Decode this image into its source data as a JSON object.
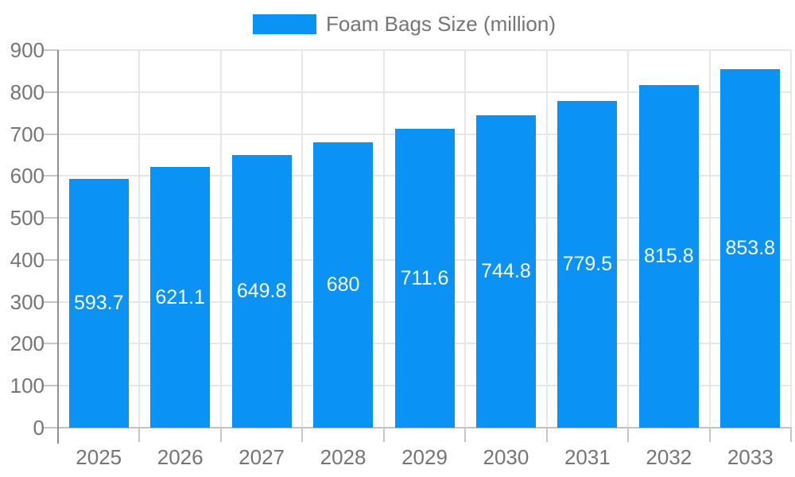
{
  "legend": {
    "items": [
      {
        "label": "Foam Bags Size (million)",
        "color": "#0a92f5"
      }
    ]
  },
  "chart_data": {
    "type": "bar",
    "title": "Foam Bags Size (million)",
    "categories": [
      "2025",
      "2026",
      "2027",
      "2028",
      "2029",
      "2030",
      "2031",
      "2032",
      "2033"
    ],
    "series": [
      {
        "name": "Foam Bags Size (million)",
        "values": [
          593.7,
          621.1,
          649.8,
          680,
          711.6,
          744.8,
          779.5,
          815.8,
          853.8
        ]
      }
    ],
    "value_labels": [
      "593.7",
      "621.1",
      "649.8",
      "680",
      "711.6",
      "744.8",
      "779.5",
      "815.8",
      "853.8"
    ],
    "xlabel": "",
    "ylabel": "",
    "ylim": [
      0,
      900
    ],
    "ytick_step": 100,
    "ytick_labels": [
      "0",
      "100",
      "200",
      "300",
      "400",
      "500",
      "600",
      "700",
      "800",
      "900"
    ],
    "grid": true,
    "legend_position": "top-center"
  },
  "colors": {
    "bar": "#0a92f5",
    "axis_label": "#757575",
    "value_label": "#ffffff",
    "axis_line": "#8f8f8f",
    "baseline": "#c2c2c2",
    "tick": "#c6c6c6",
    "gridline": "#e7e7e7",
    "background": "#ffffff"
  }
}
